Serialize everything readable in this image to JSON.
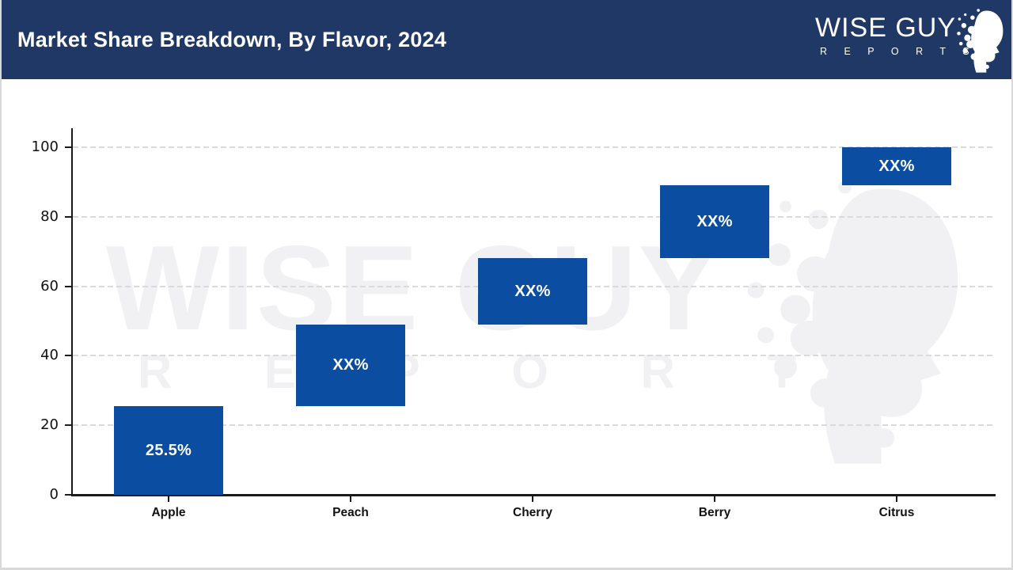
{
  "header": {
    "title": "Market Share Breakdown, By Flavor, 2024",
    "logo": {
      "line1": "WISE GUY",
      "line2": "R E P O R T S"
    }
  },
  "watermark": {
    "line1": "WISE GUY",
    "line2": "REPORTS"
  },
  "colors": {
    "header_bg": "#1f3866",
    "bar": "#0b4da1",
    "grid": "#dadada",
    "axis": "#1a1a1a",
    "watermark": "#f1f1f3",
    "bar_label": "#ffffff"
  },
  "chart_data": {
    "type": "bar",
    "subtype": "waterfall",
    "title": "Market Share Breakdown, By Flavor, 2024",
    "categories": [
      "Apple",
      "Peach",
      "Cherry",
      "Berry",
      "Citrus"
    ],
    "segments": [
      {
        "category": "Apple",
        "start": 0,
        "end": 25.5,
        "value": 25.5,
        "label": "25.5%"
      },
      {
        "category": "Peach",
        "start": 25.5,
        "end": 49,
        "value": 23.5,
        "label": "XX%"
      },
      {
        "category": "Cherry",
        "start": 49,
        "end": 68,
        "value": 19,
        "label": "XX%"
      },
      {
        "category": "Berry",
        "start": 68,
        "end": 89,
        "value": 21,
        "label": "XX%"
      },
      {
        "category": "Citrus",
        "start": 89,
        "end": 100,
        "value": 11,
        "label": "XX%"
      }
    ],
    "xlabel": "",
    "ylabel": "",
    "ylim": [
      0,
      100
    ],
    "yticks": [
      0,
      20,
      40,
      60,
      80,
      100
    ],
    "grid": "horizontal-dashed",
    "legend": "none"
  }
}
